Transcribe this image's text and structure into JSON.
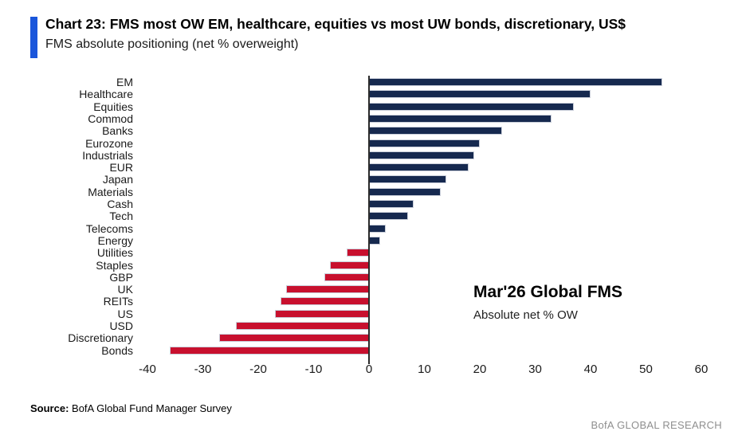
{
  "accent_color": "#1a56db",
  "chart_data": {
    "type": "bar",
    "orientation": "horizontal",
    "title": "Chart 23: FMS most OW EM, healthcare, equities vs most UW bonds, discretionary, US$",
    "subtitle": "FMS absolute positioning (net % overweight)",
    "categories": [
      "EM",
      "Healthcare",
      "Equities",
      "Commod",
      "Banks",
      "Eurozone",
      "Industrials",
      "EUR",
      "Japan",
      "Materials",
      "Cash",
      "Tech",
      "Telecoms",
      "Energy",
      "Utilities",
      "Staples",
      "GBP",
      "UK",
      "REITs",
      "US",
      "USD",
      "Discretionary",
      "Bonds"
    ],
    "values": [
      53,
      40,
      37,
      33,
      24,
      20,
      19,
      18,
      14,
      13,
      8,
      7,
      3,
      2,
      -4,
      -7,
      -8,
      -15,
      -16,
      -17,
      -24,
      -27,
      -36
    ],
    "xlim": [
      -40,
      60
    ],
    "xticks": [
      -40,
      -30,
      -20,
      -10,
      0,
      10,
      20,
      30,
      40,
      50,
      60
    ],
    "grid": false,
    "legend": "none",
    "positive_color": "#16294f",
    "negative_color": "#c8102e",
    "bar_outline": "#c9ced9",
    "annotation": {
      "title": "Mar'26 Global FMS",
      "subtitle": "Absolute net % OW"
    }
  },
  "footer": {
    "source_label": "Source:",
    "source_text": " BofA Global Fund Manager Survey",
    "brand": "BofA GLOBAL RESEARCH"
  }
}
